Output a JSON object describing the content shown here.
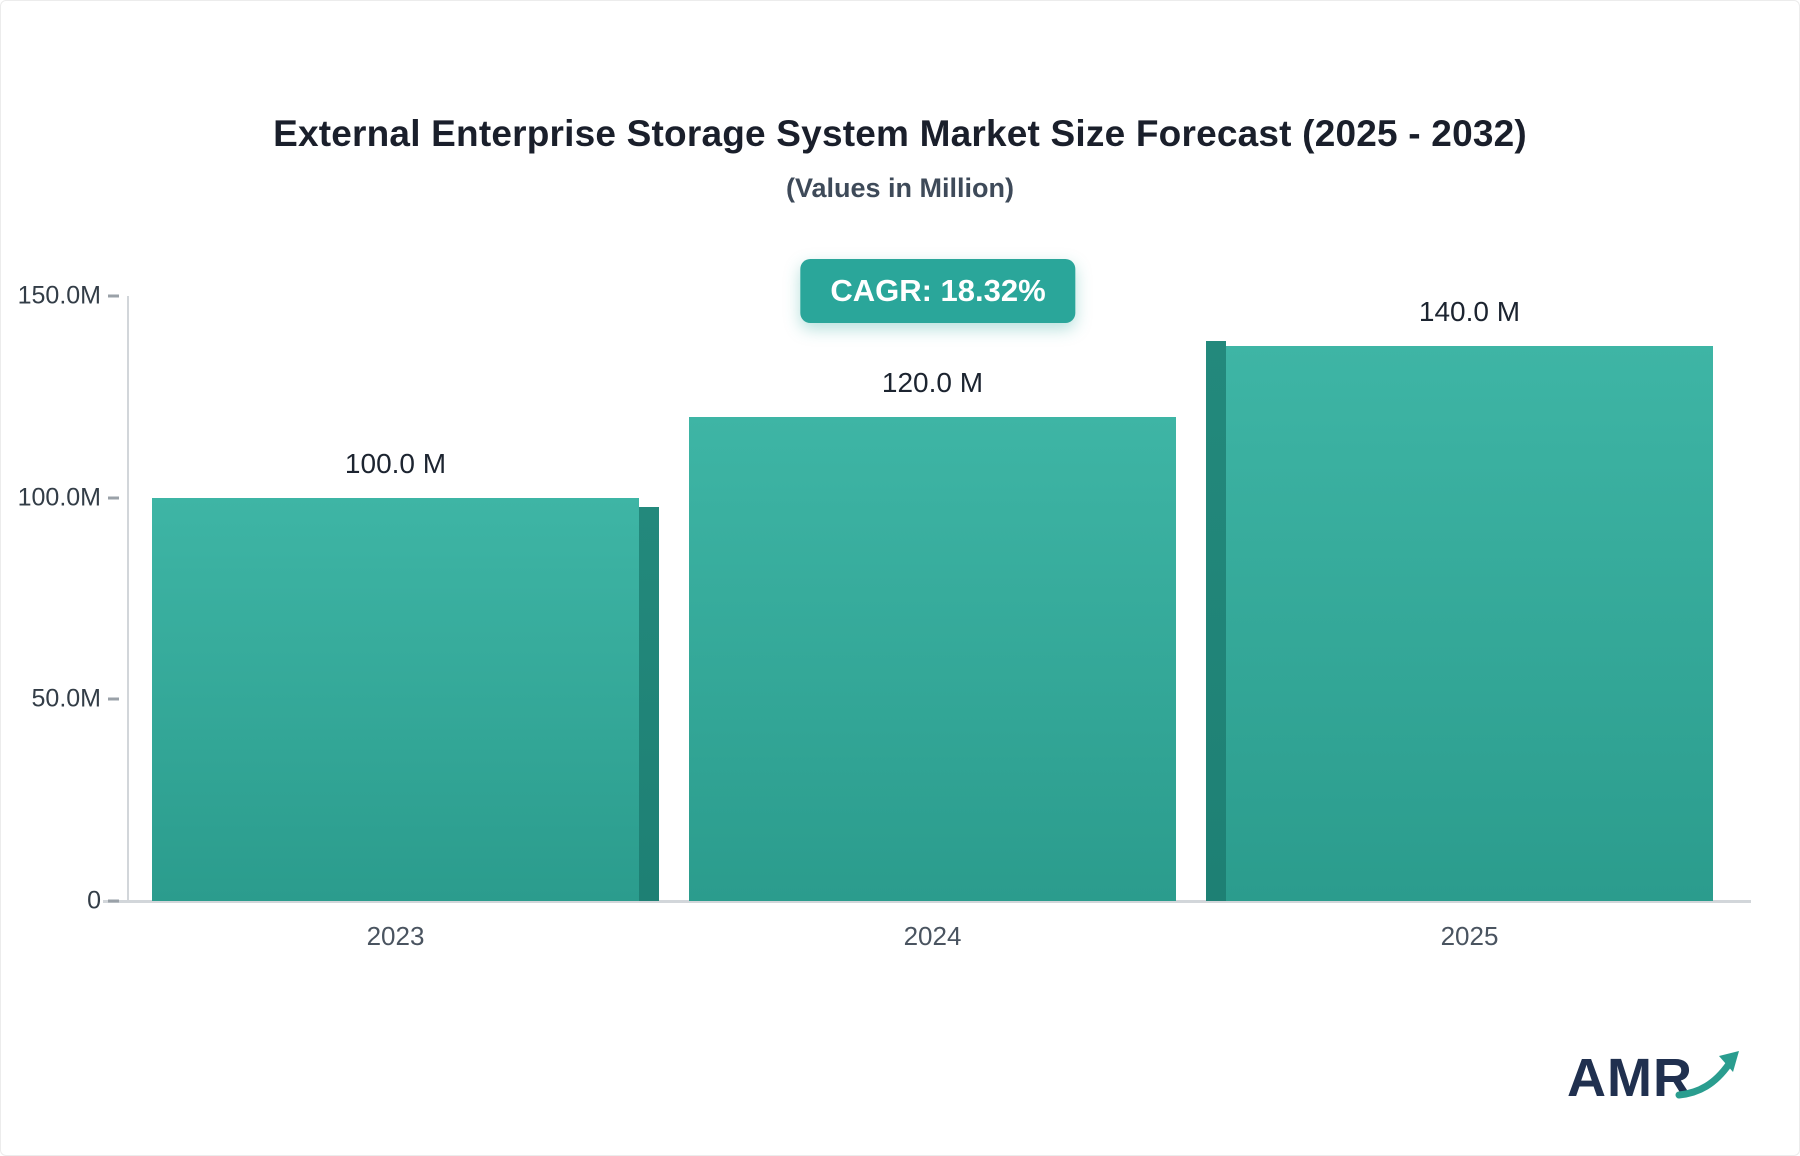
{
  "header": {
    "title": "External Enterprise Storage System Market Size Forecast (2025 - 2032)",
    "subtitle": "(Values in Million)"
  },
  "badge": {
    "label": "CAGR: 18.32%"
  },
  "chart_data": {
    "type": "bar",
    "title": "External Enterprise Storage System Market Size Forecast (2025 - 2032)",
    "subtitle": "(Values in Million)",
    "categories": [
      "2023",
      "2024",
      "2025"
    ],
    "values": [
      100,
      120,
      140
    ],
    "bar_labels": [
      "100.0 M",
      "120.0 M",
      "140.0 M"
    ],
    "xlabel": "",
    "ylabel": "",
    "ylim": [
      0,
      150
    ],
    "yticks": [
      {
        "value": 0,
        "label": "0"
      },
      {
        "value": 50,
        "label": "50.0M"
      },
      {
        "value": 100,
        "label": "100.0M"
      },
      {
        "value": 150,
        "label": "150.0M"
      }
    ],
    "grid": "off",
    "legend_position": "none",
    "colors": {
      "bar_top": "#3eb5a5",
      "bar_bottom": "#2b9c8d",
      "bar_side_3d": "#1e8074",
      "badge_background": "#2aa69a",
      "axis_line": "#d2d6da",
      "title_text": "#1a1f2b"
    }
  },
  "logo": {
    "text": "AMR",
    "arrow_color": "#2a9d8f"
  }
}
